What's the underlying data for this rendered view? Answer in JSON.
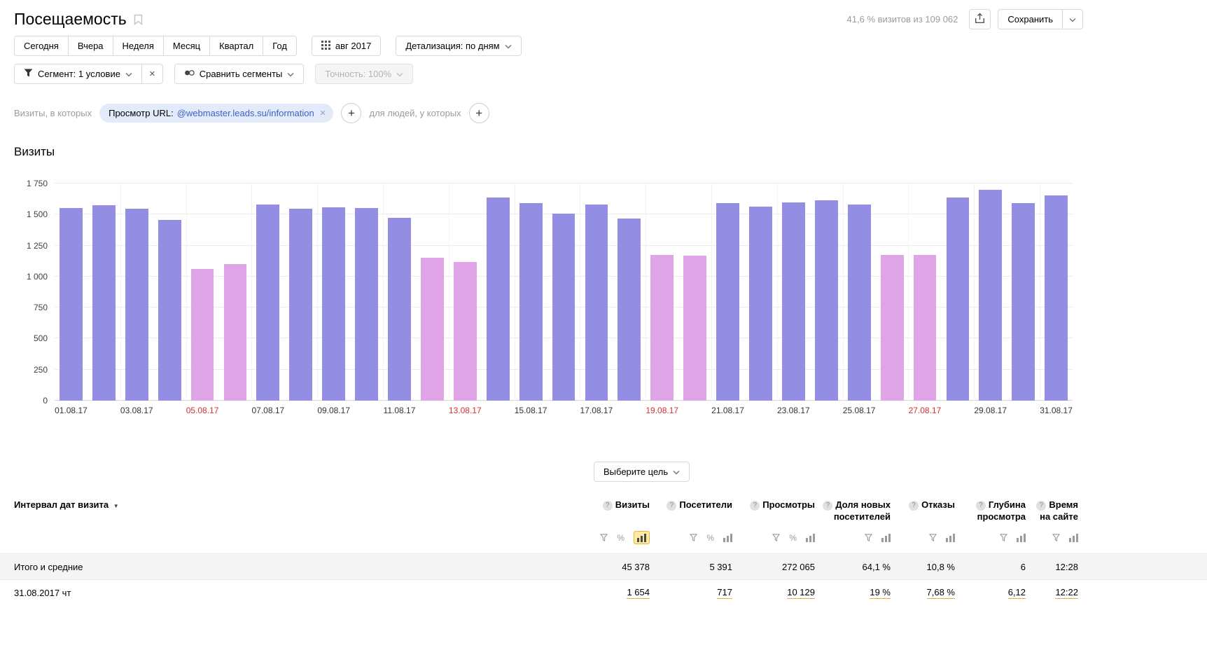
{
  "header": {
    "title": "Посещаемость",
    "visits_share": "41,6 % визитов из 109 062",
    "save_label": "Сохранить"
  },
  "toolbar": {
    "periods": [
      "Сегодня",
      "Вчера",
      "Неделя",
      "Месяц",
      "Квартал",
      "Год"
    ],
    "calendar_label": "авг 2017",
    "detail_label": "Детализация: по дням",
    "segment_label": "Сегмент: 1 условие",
    "compare_label": "Сравнить сегменты",
    "accuracy_label": "Точность: 100%"
  },
  "filters": {
    "visits_prefix": "Визиты, в которых",
    "chip_label": "Просмотр URL:",
    "chip_value": "@webmaster.leads.su/information",
    "people_label": "для людей, у которых"
  },
  "icons": {
    "close": "×",
    "plus": "+",
    "percent": "%",
    "sort_desc": "▼",
    "help": "?"
  },
  "chart_data": {
    "type": "bar",
    "title": "Визиты",
    "xlabel": "",
    "ylabel": "",
    "ylim": [
      0,
      1750
    ],
    "yticks": [
      "0",
      "250",
      "500",
      "750",
      "1 000",
      "1 250",
      "1 500",
      "1 750"
    ],
    "grid": true,
    "tick_every": 2,
    "categories": [
      "01.08.17",
      "02.08.17",
      "03.08.17",
      "04.08.17",
      "05.08.17",
      "06.08.17",
      "07.08.17",
      "08.08.17",
      "09.08.17",
      "10.08.17",
      "11.08.17",
      "12.08.17",
      "13.08.17",
      "14.08.17",
      "15.08.17",
      "16.08.17",
      "17.08.17",
      "18.08.17",
      "19.08.17",
      "20.08.17",
      "21.08.17",
      "22.08.17",
      "23.08.17",
      "24.08.17",
      "25.08.17",
      "26.08.17",
      "27.08.17",
      "28.08.17",
      "29.08.17",
      "30.08.17",
      "31.08.17"
    ],
    "values": [
      1555,
      1575,
      1545,
      1455,
      1060,
      1100,
      1580,
      1545,
      1560,
      1550,
      1475,
      1150,
      1120,
      1640,
      1590,
      1505,
      1580,
      1470,
      1175,
      1170,
      1590,
      1565,
      1595,
      1615,
      1580,
      1175,
      1175,
      1635,
      1700,
      1590,
      1654
    ],
    "weekend_indices": [
      4,
      5,
      11,
      12,
      18,
      19,
      25,
      26
    ],
    "colors": {
      "weekday": "#938ee3",
      "weekend": "#dfa5e6",
      "red_tick": "#d3302f"
    }
  },
  "table": {
    "goal_button_label": "Выберите цель",
    "date_column_header": "Интервал дат визита",
    "columns": [
      {
        "label": "Визиты",
        "icons": [
          "filter",
          "percent",
          "chart"
        ],
        "active_icon": "chart"
      },
      {
        "label": "Посетители",
        "icons": [
          "filter",
          "percent",
          "chart"
        ]
      },
      {
        "label": "Просмотры",
        "icons": [
          "filter",
          "percent",
          "chart"
        ]
      },
      {
        "label": "Доля новых посетителей",
        "icons": [
          "filter",
          "chart"
        ]
      },
      {
        "label": "Отказы",
        "icons": [
          "filter",
          "chart"
        ]
      },
      {
        "label": "Глубина просмотра",
        "icons": [
          "filter",
          "chart"
        ]
      },
      {
        "label": "Время на сайте",
        "icons": [
          "filter",
          "chart"
        ]
      }
    ],
    "rows": [
      {
        "label": "Итого и средние",
        "type": "totals",
        "values": [
          "45 378",
          "5 391",
          "272 065",
          "64,1 %",
          "10,8 %",
          "6",
          "12:28"
        ]
      },
      {
        "label": "31.08.2017 чт",
        "type": "date",
        "values": [
          "1 654",
          "717",
          "10 129",
          "19 %",
          "7,68 %",
          "6,12",
          "12:22"
        ]
      }
    ]
  }
}
